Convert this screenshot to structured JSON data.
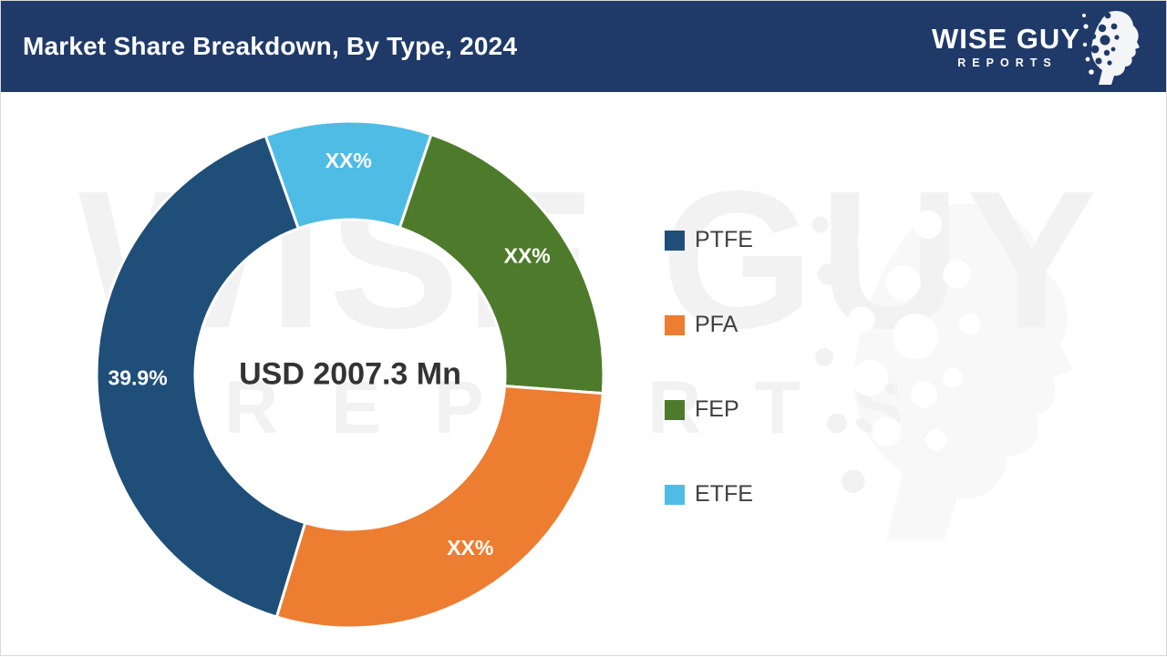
{
  "header": {
    "title": "Market Share Breakdown, By Type, 2024",
    "logo_main": "WISE GUY",
    "logo_sub": "REPORTS"
  },
  "watermark": {
    "text_main": "WISE GUY",
    "text_sub": "REPORTS"
  },
  "chart_data": {
    "type": "pie",
    "subtype": "donut",
    "title": "Market Share Breakdown, By Type, 2024",
    "center_label": "USD 2007.3 Mn",
    "legend_position": "right",
    "rotation_deg": -19.5,
    "draw_order": [
      3,
      2,
      1,
      0
    ],
    "segments": [
      {
        "name": "PTFE",
        "value": 39.9,
        "display_label": "39.9%",
        "color": "#1f4e79"
      },
      {
        "name": "PFA",
        "value": 28.5,
        "display_label": "XX%",
        "color": "#ed7d31"
      },
      {
        "name": "FEP",
        "value": 21.0,
        "display_label": "XX%",
        "color": "#4e7b2b"
      },
      {
        "name": "ETFE",
        "value": 10.6,
        "display_label": "XX%",
        "color": "#4fbce6"
      }
    ]
  },
  "colors": {
    "header_bg": "#1f3a68",
    "header_text": "#ffffff",
    "center_text": "#333333",
    "legend_text": "#3f3f3f",
    "watermark": "#f2f2f2"
  }
}
